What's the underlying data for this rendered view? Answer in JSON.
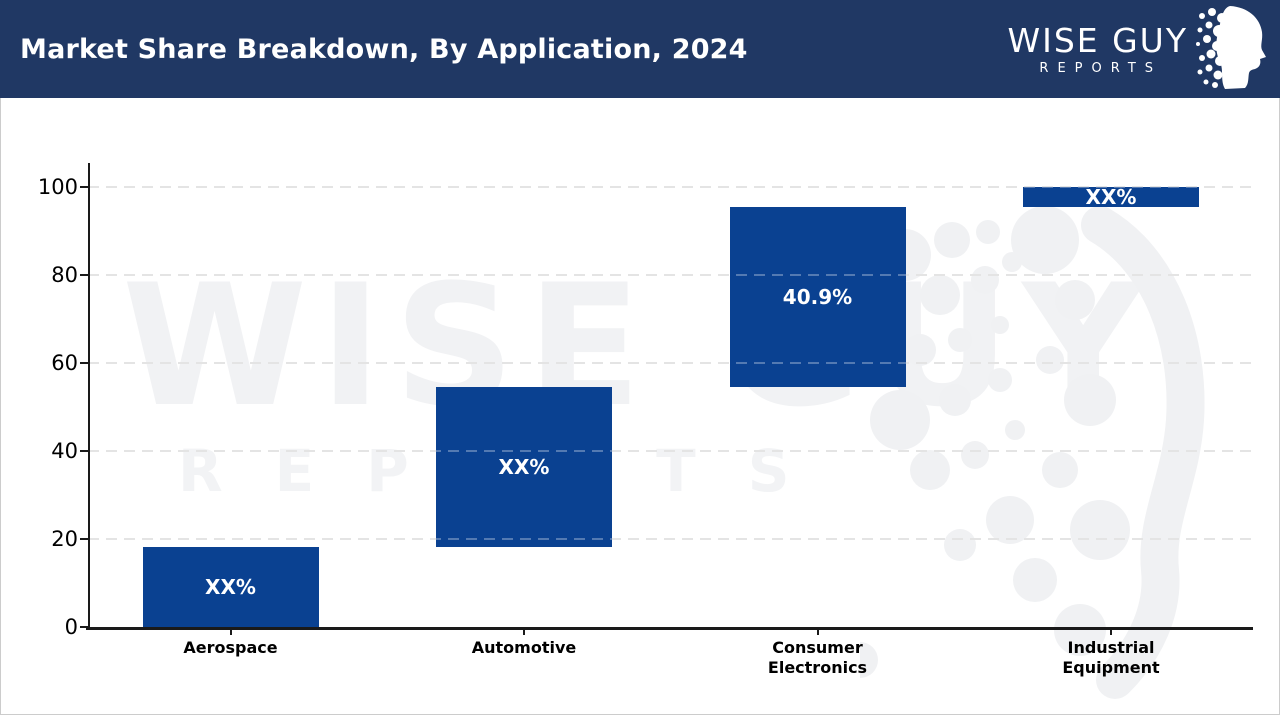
{
  "header": {
    "title": "Market Share Breakdown, By Application, 2024",
    "logo": {
      "line1": "WISE GUY",
      "line2": "REPORTS"
    }
  },
  "watermark": {
    "line1": "WISE GUY",
    "line2": "REPORTS"
  },
  "colors": {
    "header_bg": "#203864",
    "bar": "#0a4191",
    "bar_label": "#ffffff",
    "grid": "#d9d9d9",
    "axis": "#1a1a1a",
    "watermark": "#f1f2f4",
    "frame_border": "#cccccc"
  },
  "chart_data": {
    "type": "bar",
    "subtype": "waterfall",
    "title": "Market Share Breakdown, By Application, 2024",
    "categories": [
      "Aerospace",
      "Automotive",
      "Consumer Electronics",
      "Industrial Equipment"
    ],
    "segments": [
      {
        "category": "Aerospace",
        "start": 0,
        "end": 18.2,
        "value": 18.2,
        "label": "XX%"
      },
      {
        "category": "Automotive",
        "start": 18.2,
        "end": 54.6,
        "value": 36.4,
        "label": "XX%"
      },
      {
        "category": "Consumer Electronics",
        "start": 54.6,
        "end": 95.5,
        "value": 40.9,
        "label": "40.9%"
      },
      {
        "category": "Industrial Equipment",
        "start": 95.5,
        "end": 100,
        "value": 4.5,
        "label": "XX%"
      }
    ],
    "xlabel": "",
    "ylabel": "",
    "ylim": [
      0,
      100
    ],
    "yticks": [
      0,
      20,
      40,
      60,
      80,
      100
    ],
    "grid": "horizontal dashed",
    "legend": "none"
  }
}
